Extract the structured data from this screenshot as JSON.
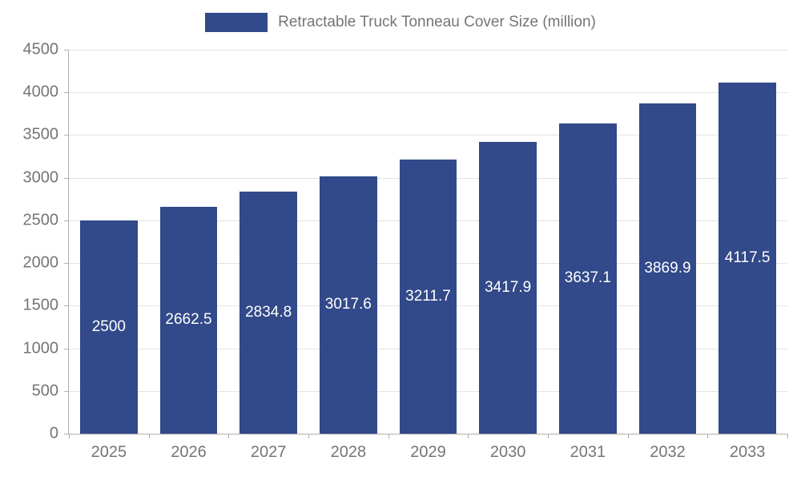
{
  "chart_data": {
    "type": "bar",
    "title": "Retractable Truck Tonneau Cover Size (million)",
    "xlabel": "",
    "ylabel": "",
    "categories": [
      "2025",
      "2026",
      "2027",
      "2028",
      "2029",
      "2030",
      "2031",
      "2032",
      "2033"
    ],
    "values": [
      2500,
      2662.5,
      2834.8,
      3017.6,
      3211.7,
      3417.9,
      3637.1,
      3869.9,
      4117.5
    ],
    "labels": [
      "2500",
      "2662.5",
      "2834.8",
      "3017.6",
      "3211.7",
      "3417.9",
      "3637.1",
      "3869.9",
      "4117.5"
    ],
    "ylim": [
      0,
      4500
    ],
    "ytick_step": 500,
    "grid": true,
    "legend_position": "top",
    "bar_color": "#32498A",
    "value_label_color": "#ffffff",
    "axis_text_color": "#757575",
    "gridline_color": "#e3e3e3",
    "axis_line_color": "#b0b0b0"
  }
}
